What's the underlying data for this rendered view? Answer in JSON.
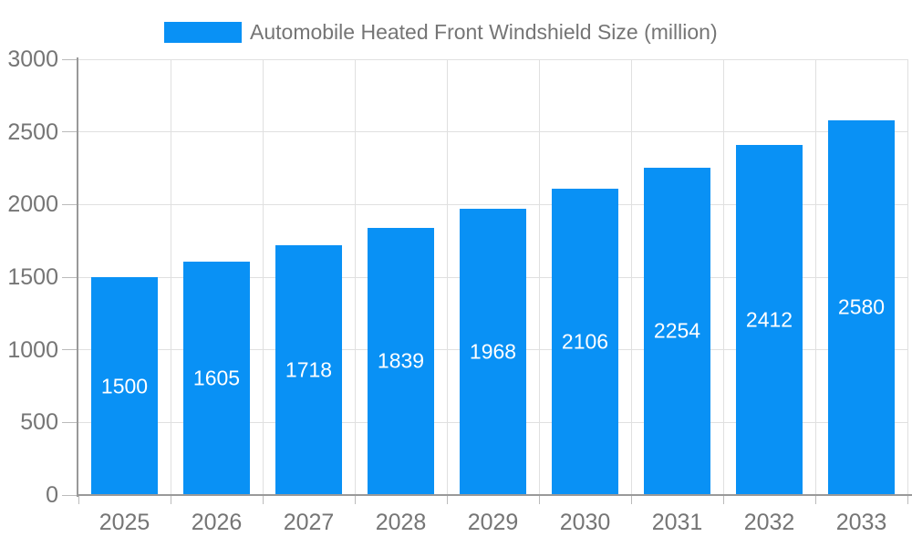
{
  "chart_data": {
    "type": "bar",
    "title": "Automobile Heated Front Windshield Size (million)",
    "categories": [
      "2025",
      "2026",
      "2027",
      "2028",
      "2029",
      "2030",
      "2031",
      "2032",
      "2033"
    ],
    "values": [
      1500,
      1605,
      1718,
      1839,
      1968,
      2106,
      2254,
      2412,
      2580
    ],
    "xlabel": "",
    "ylabel": "",
    "ylim": [
      0,
      3000
    ],
    "yticks": [
      0,
      500,
      1000,
      1500,
      2000,
      2500,
      3000
    ],
    "grid": true,
    "legend_position": "top",
    "bar_value_labels_inside": true,
    "colors": {
      "bar": "#0991F5",
      "bar_label": "#FFFFFF",
      "axis_text": "#757575",
      "legend_text": "#757575",
      "grid": "#E0E0E0",
      "axis_line": "#999999",
      "tick": "#BBBBBB",
      "background": "#FFFFFF"
    }
  }
}
